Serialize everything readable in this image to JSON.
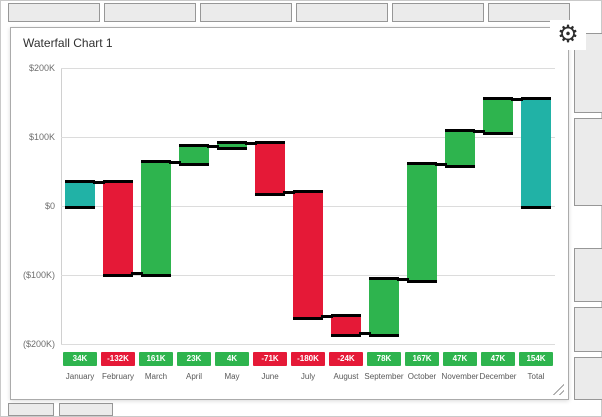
{
  "panel": {
    "title": "Waterfall Chart 1"
  },
  "icons": {
    "gear": "⚙"
  },
  "chart_data": {
    "type": "bar",
    "subtype": "waterfall",
    "title": "Waterfall Chart 1",
    "categories": [
      "January",
      "February",
      "March",
      "April",
      "May",
      "June",
      "July",
      "August",
      "September",
      "October",
      "November",
      "December",
      "Total"
    ],
    "values": [
      34,
      -132,
      161,
      23,
      4,
      -71,
      -180,
      -24,
      78,
      167,
      47,
      47,
      154
    ],
    "value_labels": [
      "34K",
      "-132K",
      "161K",
      "23K",
      "4K",
      "-71K",
      "-180K",
      "-24K",
      "78K",
      "167K",
      "47K",
      "47K",
      "154K"
    ],
    "bar_roles": [
      "start",
      "delta",
      "delta",
      "delta",
      "delta",
      "delta",
      "delta",
      "delta",
      "delta",
      "delta",
      "delta",
      "delta",
      "total"
    ],
    "cumulative": [
      34,
      -98,
      63,
      86,
      90,
      19,
      -161,
      -185,
      -107,
      60,
      107,
      154,
      154
    ],
    "y_ticks": [
      {
        "label": "$200K",
        "value": 200
      },
      {
        "label": "$100K",
        "value": 100
      },
      {
        "label": "$0",
        "value": 0
      },
      {
        "label": "($100K)",
        "value": -100
      },
      {
        "label": "($200K)",
        "value": -200
      }
    ],
    "ylim": [
      -200,
      200
    ],
    "xlabel": "",
    "ylabel": "",
    "legend": "none",
    "grid": "horizontal",
    "colors": {
      "rise": "#2eb44e",
      "fall": "#e51937",
      "total": "#21b2a6",
      "connector": "#000000",
      "label_positive": "#2eb44e",
      "label_negative": "#e51937"
    }
  }
}
